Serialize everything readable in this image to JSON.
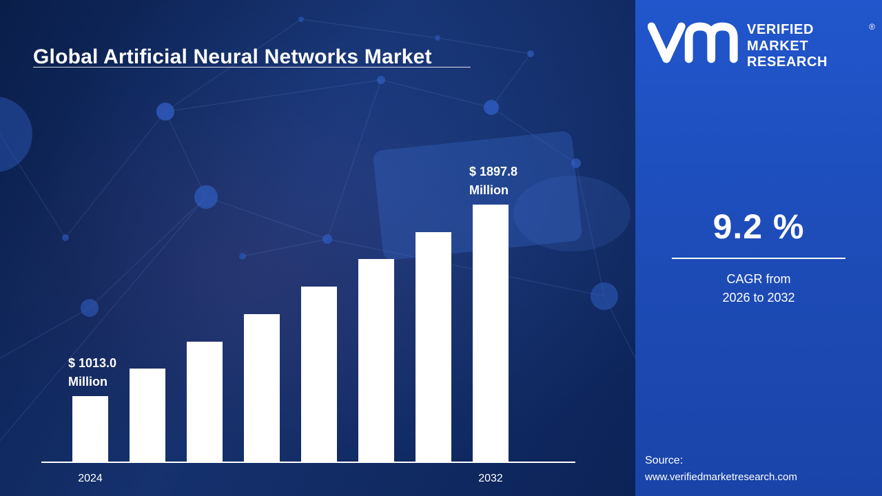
{
  "title": {
    "text": "Global Artificial Neural Networks Market"
  },
  "chart_data": {
    "type": "bar",
    "title": "Global Artificial Neural Networks Market",
    "categories": [
      "2024",
      "",
      "",
      "",
      "",
      "",
      "",
      "2032"
    ],
    "values": [
      1013.0,
      1139.4,
      1265.8,
      1392.2,
      1518.6,
      1645.0,
      1771.4,
      1897.8
    ],
    "value_unit": "USD Million",
    "visible_x_ticks": [
      "2024",
      "2032"
    ],
    "labeled_points": [
      {
        "category": "2024",
        "label_line1": "$ 1013.0",
        "label_line2": "Million"
      },
      {
        "category": "2032",
        "label_line1": "$ 1897.8",
        "label_line2": "Million"
      }
    ],
    "xlabel": "",
    "ylabel": "",
    "ylim": [
      0,
      2000
    ],
    "grid": false,
    "legend": "none",
    "bar_color": "#ffffff",
    "axis_line_color": "#ffffff"
  },
  "panel": {
    "brand": {
      "monogram": "VM",
      "line1": "VERIFIED",
      "line2": "MARKET",
      "line3": "RESEARCH",
      "registered": "®"
    },
    "cagr": {
      "value": "9.2 %",
      "caption_line1": "CAGR from",
      "caption_line2": "2026 to 2032"
    },
    "source": {
      "label": "Source:",
      "url": "www.verifiedmarketresearch.com"
    }
  },
  "colors": {
    "left_background": "#15316e",
    "panel_background": "#1d4bb6",
    "bar": "#ffffff",
    "text": "#ffffff"
  }
}
